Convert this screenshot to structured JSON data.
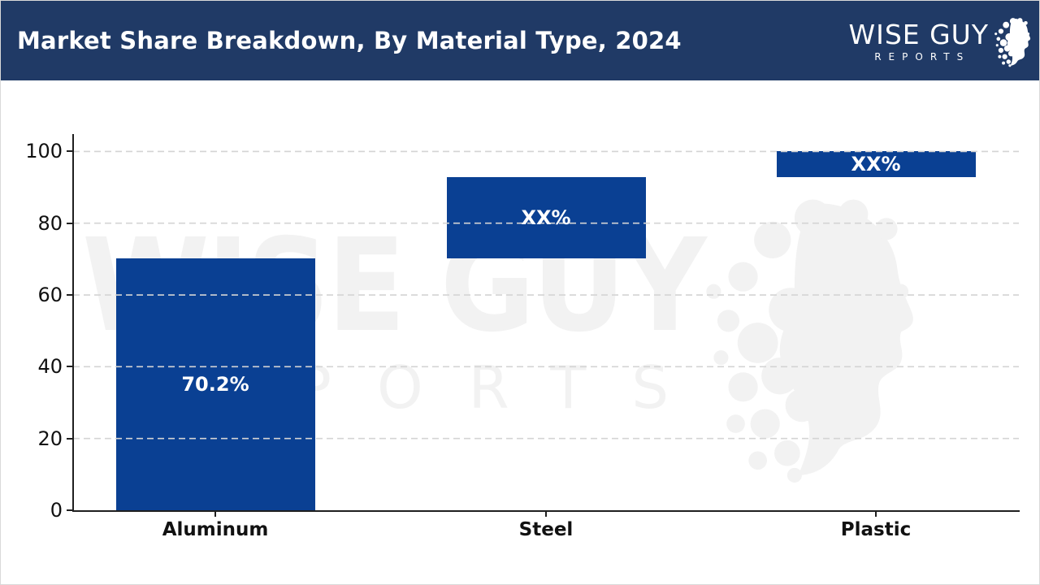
{
  "header": {
    "title": "Market Share Breakdown, By Material Type, 2024",
    "bg_color": "#203a66",
    "logo": {
      "line1": "WISE GUY",
      "line2": "REPORTS",
      "icon": "dotted-head-profile"
    }
  },
  "watermark": {
    "line1": "WISE GUY",
    "line2": "REPORTS",
    "icon": "dotted-head-profile",
    "color": "#f2f2f2"
  },
  "chart_data": {
    "type": "bar",
    "subtype": "floating-segment-bars (waterfall-style market share breakdown)",
    "title": "Market Share Breakdown, By Material Type, 2024",
    "categories": [
      "Aluminum",
      "Steel",
      "Plastic"
    ],
    "bars": [
      {
        "category": "Aluminum",
        "from": 0,
        "to": 70.2,
        "label": "70.2%",
        "masked": false
      },
      {
        "category": "Steel",
        "from": 70.2,
        "to": 92.9,
        "label": "XX%",
        "masked": true
      },
      {
        "category": "Plastic",
        "from": 92.9,
        "to": 100,
        "label": "XX%",
        "masked": true
      }
    ],
    "y_ticks": [
      0,
      20,
      40,
      60,
      80,
      100
    ],
    "ylim": [
      0,
      105
    ],
    "xlabel": "",
    "ylabel": "",
    "legend": "none",
    "grid": "horizontal dashed, drawn above bars",
    "bar_color": "#0a4093",
    "bar_label_color": "#ffffff",
    "gridline_color": "#d4d4d4",
    "axis_color": "#1f1f1f"
  }
}
